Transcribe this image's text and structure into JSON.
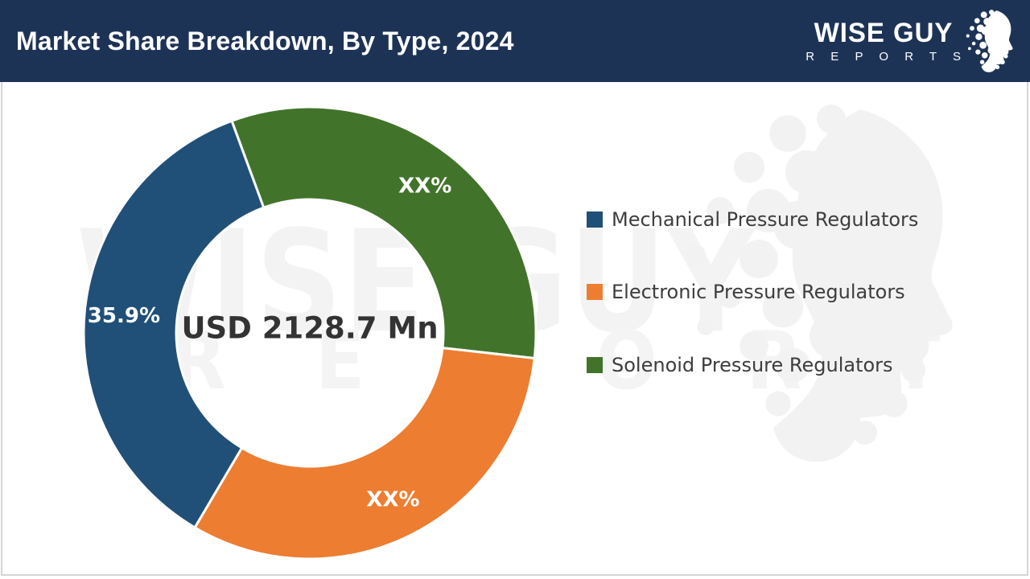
{
  "header": {
    "title": "Market Share Breakdown, By Type, 2024",
    "bg_color": "#1d3356",
    "logo": {
      "wordmark": "WISE GUY",
      "subtext": "R E P O R T S"
    }
  },
  "watermark": {
    "line1": "WISE GUY",
    "line2": "R E P O R T S"
  },
  "chart_data": {
    "type": "pie",
    "variant": "donut",
    "title": "Market Share Breakdown, By Type, 2024",
    "center_label": "USD 2128.7 Mn",
    "start_angle_deg": 110.2,
    "direction": "clockwise",
    "legend_position": "right",
    "segments": [
      {
        "name": "Solenoid Pressure Regulators",
        "display_label": "XX%",
        "value_pct": 32.4,
        "color": "#41742a"
      },
      {
        "name": "Electronic Pressure Regulators",
        "display_label": "XX%",
        "value_pct": 31.7,
        "color": "#ed7d31"
      },
      {
        "name": "Mechanical Pressure Regulators",
        "display_label": "35.9%",
        "value_pct": 35.9,
        "color": "#205078"
      }
    ]
  },
  "legend": {
    "items": [
      {
        "label": "Mechanical Pressure Regulators",
        "color": "#205078"
      },
      {
        "label": "Electronic Pressure Regulators",
        "color": "#ed7d31"
      },
      {
        "label": "Solenoid Pressure Regulators",
        "color": "#41742a"
      }
    ]
  }
}
